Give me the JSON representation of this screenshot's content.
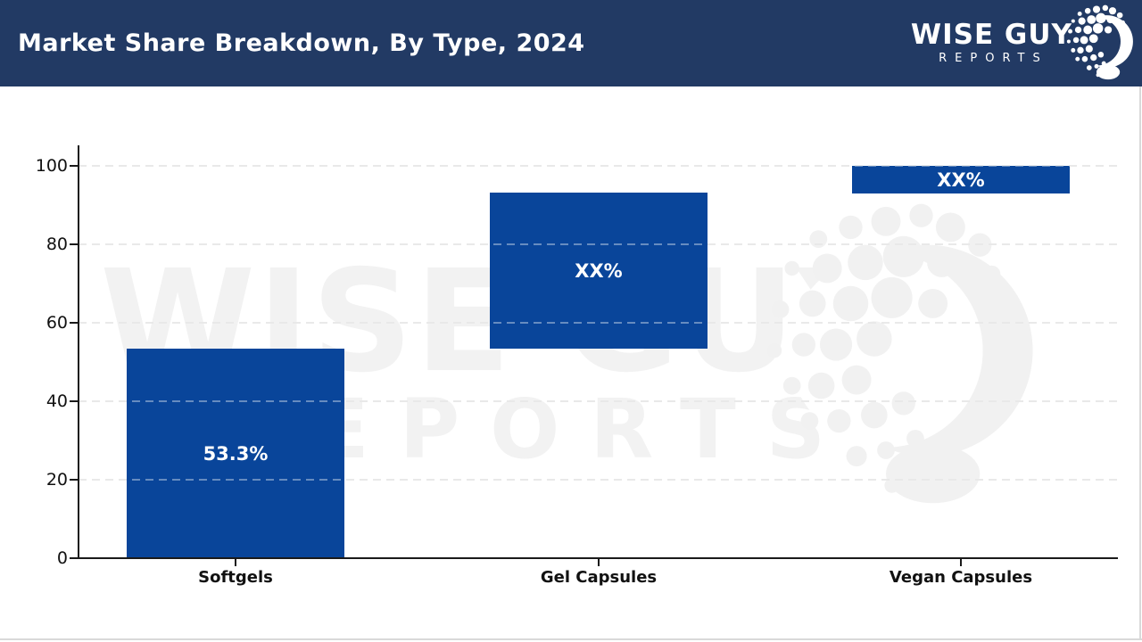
{
  "header": {
    "title": "Market Share Breakdown, By Type, 2024",
    "bg_color": "#223a64",
    "logo": {
      "line1": "WISE GUY",
      "line2": "REPORTS"
    }
  },
  "watermark": {
    "line1": "WISE GUY",
    "line2": "REPORTS"
  },
  "chart_data": {
    "type": "bar",
    "subtype": "waterfall-stacked-breakdown",
    "title": "Market Share Breakdown, By Type, 2024",
    "categories": [
      "Softgels",
      "Gel Capsules",
      "Vegan Capsules"
    ],
    "bars": [
      {
        "category": "Softgels",
        "start": 0,
        "end": 53.3,
        "label": "53.3%"
      },
      {
        "category": "Gel Capsules",
        "start": 53.3,
        "end": 93,
        "label": "XX%"
      },
      {
        "category": "Vegan Capsules",
        "start": 93,
        "end": 100,
        "label": "XX%"
      }
    ],
    "ylim": [
      0,
      100
    ],
    "yticks": [
      0,
      20,
      40,
      60,
      80,
      100
    ],
    "xlabel": "",
    "ylabel": "",
    "grid": "horizontal-dashed",
    "legend": "none",
    "bar_color": "#09459a",
    "bar_label_color": "#ffffff",
    "axis_color": "#1a1a1a"
  }
}
